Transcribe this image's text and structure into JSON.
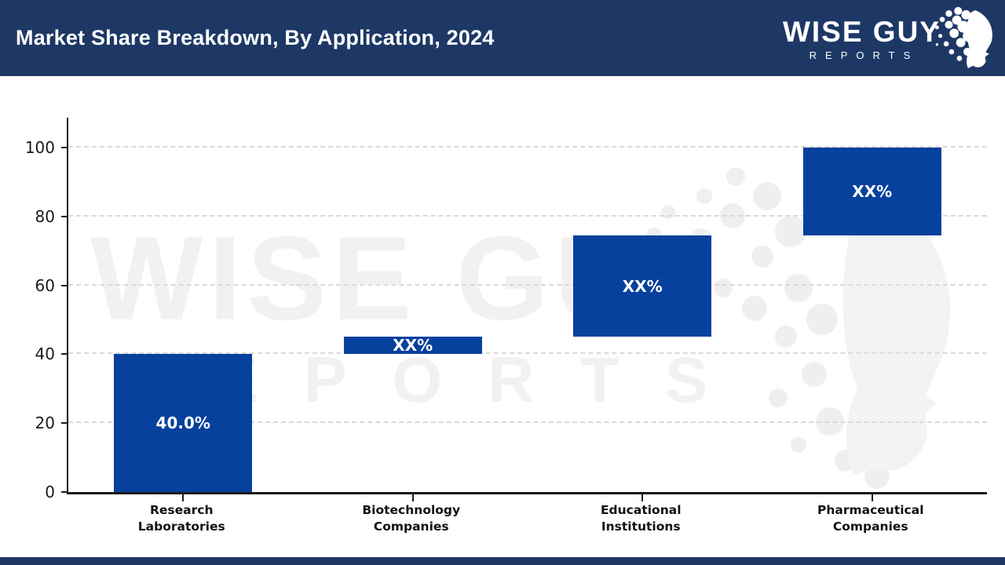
{
  "header": {
    "title": "Market Share Breakdown, By Application, 2024",
    "logo": {
      "name_line": "WISE GUY",
      "sub_line": "REPORTS"
    }
  },
  "watermark": {
    "line1": "WISE GU",
    "line2": "REPORTS"
  },
  "colors": {
    "header_bg": "#1e3866",
    "bar": "#06419d",
    "grid": "#d9d9d9",
    "axis": "#1a1a1a",
    "title_text": "#ffffff",
    "bar_label": "#ffffff",
    "tick_text": "#1a1a1a",
    "watermark_ink": "#f1f1f1"
  },
  "chart_data": {
    "type": "bar",
    "subtype": "waterfall",
    "title": "Market Share Breakdown, By Application, 2024",
    "xlabel": "",
    "ylabel": "",
    "ylim": [
      0,
      108
    ],
    "yticks": [
      0,
      20,
      40,
      60,
      80,
      100
    ],
    "grid": "horizontal dashed lines at each y tick",
    "legend": "none",
    "categories": [
      "Research\nLaboratories",
      "Biotechnology\nCompanies",
      "Educational\nInstitutions",
      "Pharmaceutical\nCompanies"
    ],
    "series": [
      {
        "category": "Research Laboratories",
        "start": 0,
        "end": 40,
        "value_label": "40.0%"
      },
      {
        "category": "Biotechnology Companies",
        "start": 40,
        "end": 45,
        "value_label": "XX%"
      },
      {
        "category": "Educational Institutions",
        "start": 45,
        "end": 74.5,
        "value_label": "XX%"
      },
      {
        "category": "Pharmaceutical Companies",
        "start": 74.5,
        "end": 100,
        "value_label": "XX%"
      }
    ]
  }
}
